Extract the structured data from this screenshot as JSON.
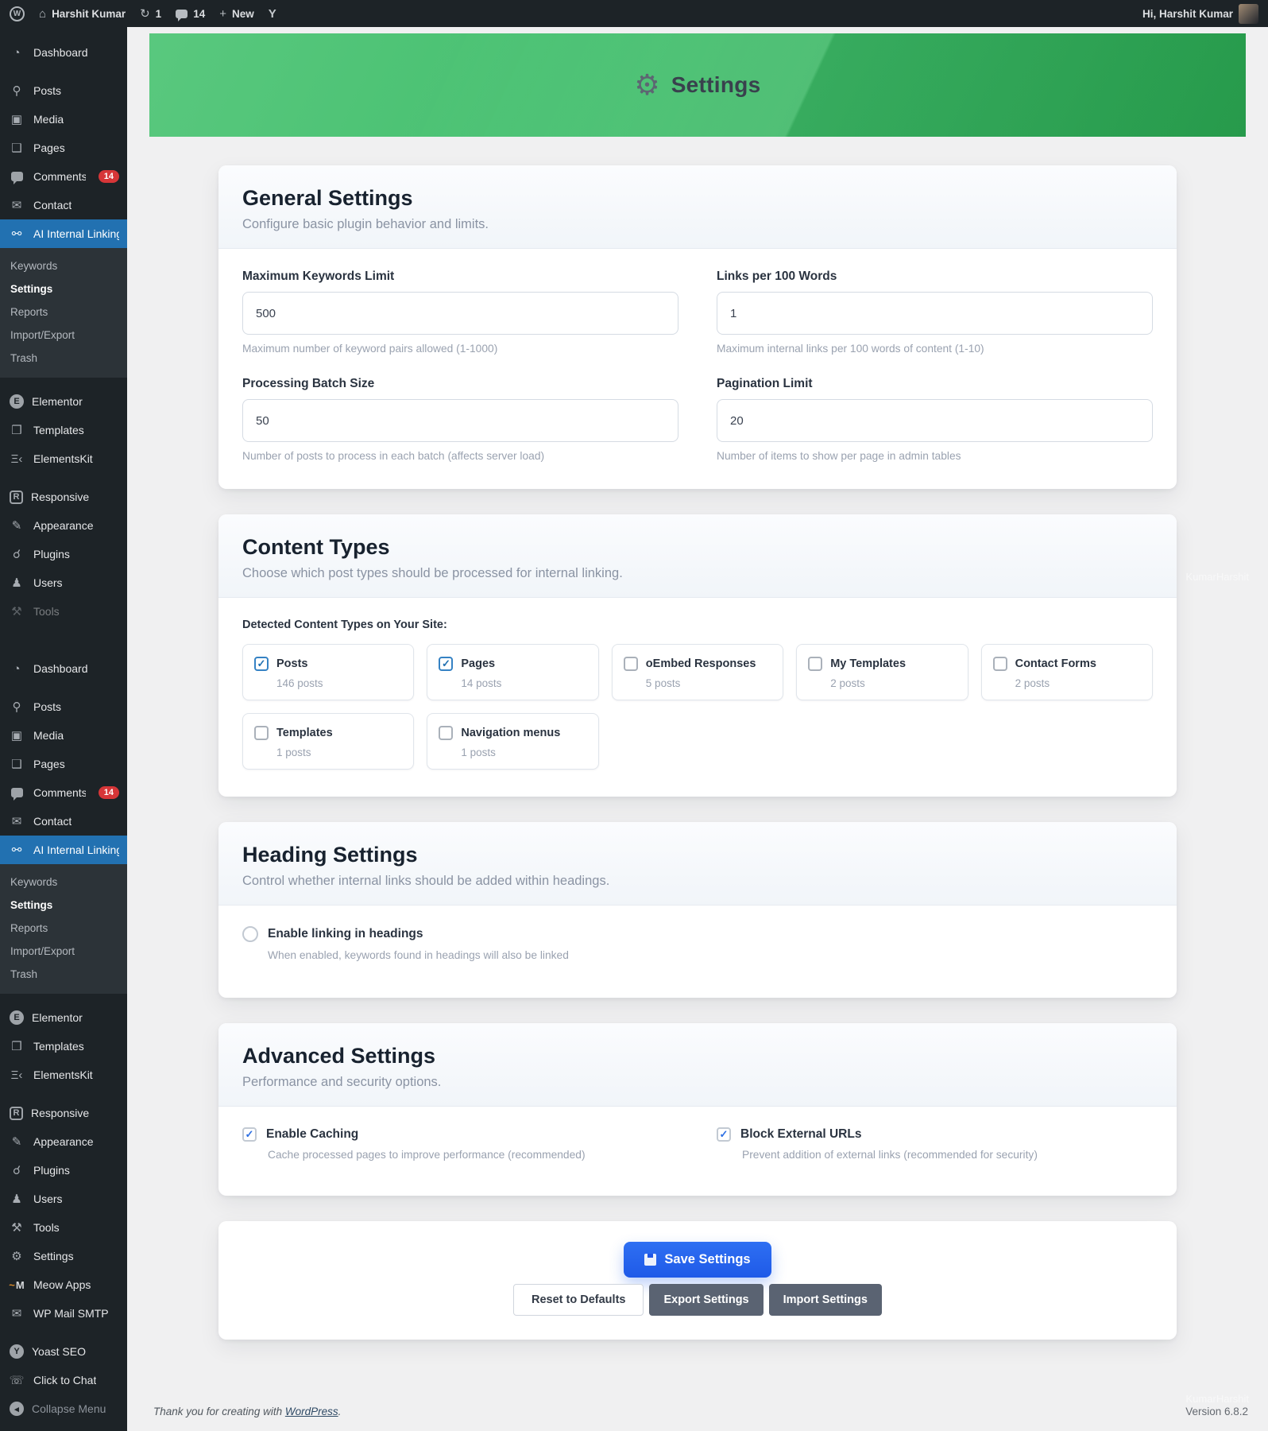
{
  "admin_bar": {
    "icons": {
      "wordpress": "W",
      "home": "⌂",
      "updates": "↻",
      "new_plus": "+",
      "yoast": "Y"
    },
    "site_name": "Harshit Kumar",
    "updates_count": "1",
    "comments_count": "14",
    "new_label": "New",
    "greeting": "Hi, Harshit Kumar"
  },
  "sidebar": {
    "primary": [
      {
        "label": "Dashboard",
        "icon": "dashboard-icon",
        "glyph": "◔"
      },
      {
        "sep": true
      },
      {
        "label": "Posts",
        "icon": "pushpin-icon",
        "glyph": "⚲"
      },
      {
        "label": "Media",
        "icon": "media-icon",
        "glyph": "▣"
      },
      {
        "label": "Pages",
        "icon": "pages-icon",
        "glyph": "❑"
      },
      {
        "label": "Comments",
        "icon": "comment-bubble-icon",
        "glyph": "bubble",
        "badge": "14"
      },
      {
        "label": "Contact",
        "icon": "envelope-icon",
        "glyph": "✉"
      },
      {
        "label": "AI Internal Linking",
        "icon": "link-icon",
        "glyph": "⚯",
        "active": true,
        "submenu": [
          {
            "label": "Keywords"
          },
          {
            "label": "Settings",
            "current": true
          },
          {
            "label": "Reports"
          },
          {
            "label": "Import/Export"
          },
          {
            "label": "Trash"
          }
        ]
      },
      {
        "sep": true
      },
      {
        "label": "Elementor",
        "icon": "elementor-icon",
        "glyph": "E",
        "style": "circle"
      },
      {
        "label": "Templates",
        "icon": "folder-icon",
        "glyph": "❒"
      },
      {
        "label": "ElementsKit",
        "icon": "elementskit-icon",
        "glyph": "Ξ‹"
      },
      {
        "sep": true
      },
      {
        "label": "Responsive",
        "icon": "responsive-icon",
        "glyph": "R",
        "style": "boxed"
      },
      {
        "label": "Appearance",
        "icon": "brush-icon",
        "glyph": "✎"
      },
      {
        "label": "Plugins",
        "icon": "plugin-icon",
        "glyph": "☌"
      },
      {
        "label": "Users",
        "icon": "user-icon",
        "glyph": "♟"
      },
      {
        "label": "Tools",
        "icon": "wrench-icon",
        "glyph": "⚒",
        "faded": true
      }
    ],
    "secondary": [
      {
        "label": "Dashboard",
        "icon": "dashboard-icon",
        "glyph": "◔"
      },
      {
        "sep": true
      },
      {
        "label": "Posts",
        "icon": "pushpin-icon",
        "glyph": "⚲"
      },
      {
        "label": "Media",
        "icon": "media-icon",
        "glyph": "▣"
      },
      {
        "label": "Pages",
        "icon": "pages-icon",
        "glyph": "❑"
      },
      {
        "label": "Comments",
        "icon": "comment-bubble-icon",
        "glyph": "bubble",
        "badge": "14"
      },
      {
        "label": "Contact",
        "icon": "envelope-icon",
        "glyph": "✉"
      },
      {
        "label": "AI Internal Linking",
        "icon": "link-icon",
        "glyph": "⚯",
        "active": true,
        "submenu": [
          {
            "label": "Keywords"
          },
          {
            "label": "Settings",
            "current": true
          },
          {
            "label": "Reports"
          },
          {
            "label": "Import/Export"
          },
          {
            "label": "Trash"
          }
        ]
      },
      {
        "sep": true
      },
      {
        "label": "Elementor",
        "icon": "elementor-icon",
        "glyph": "E",
        "style": "circle"
      },
      {
        "label": "Templates",
        "icon": "folder-icon",
        "glyph": "❒"
      },
      {
        "label": "ElementsKit",
        "icon": "elementskit-icon",
        "glyph": "Ξ‹"
      },
      {
        "sep": true
      },
      {
        "label": "Responsive",
        "icon": "responsive-icon",
        "glyph": "R",
        "style": "boxed"
      },
      {
        "label": "Appearance",
        "icon": "brush-icon",
        "glyph": "✎"
      },
      {
        "label": "Plugins",
        "icon": "plugin-icon",
        "glyph": "☌"
      },
      {
        "label": "Users",
        "icon": "user-icon",
        "glyph": "♟"
      },
      {
        "label": "Tools",
        "icon": "wrench-icon",
        "glyph": "⚒"
      },
      {
        "label": "Settings",
        "icon": "settings-sliders-icon",
        "glyph": "⚙"
      },
      {
        "label": "Meow Apps",
        "icon": "meow-apps-icon",
        "glyph": "M",
        "style": "meow"
      },
      {
        "label": "WP Mail SMTP",
        "icon": "mail-smtp-icon",
        "glyph": "✉"
      },
      {
        "sep": true
      },
      {
        "label": "Yoast SEO",
        "icon": "yoast-icon",
        "glyph": "Y",
        "style": "circle"
      },
      {
        "label": "Click to Chat",
        "icon": "whatsapp-icon",
        "glyph": "☏"
      },
      {
        "label": "Collapse Menu",
        "icon": "collapse-icon",
        "glyph": "◂",
        "style": "circle",
        "dim": true
      }
    ]
  },
  "banner": {
    "gear": "⚙",
    "title": "Settings"
  },
  "general_settings": {
    "title": "General Settings",
    "subtitle": "Configure basic plugin behavior and limits.",
    "fields": [
      {
        "label": "Maximum Keywords Limit",
        "value": "500",
        "help": "Maximum number of keyword pairs allowed (1-1000)"
      },
      {
        "label": "Links per 100 Words",
        "value": "1",
        "help": "Maximum internal links per 100 words of content (1-10)"
      },
      {
        "label": "Processing Batch Size",
        "value": "50",
        "help": "Number of posts to process in each batch (affects server load)"
      },
      {
        "label": "Pagination Limit",
        "value": "20",
        "help": "Number of items to show per page in admin tables"
      }
    ]
  },
  "content_types": {
    "title": "Content Types",
    "subtitle": "Choose which post types should be processed for internal linking.",
    "detected_label": "Detected Content Types on Your Site:",
    "items": [
      {
        "label": "Posts",
        "count": "146 posts",
        "checked": true
      },
      {
        "label": "Pages",
        "count": "14 posts",
        "checked": true
      },
      {
        "label": "oEmbed Responses",
        "count": "5 posts",
        "checked": false
      },
      {
        "label": "My Templates",
        "count": "2 posts",
        "checked": false
      },
      {
        "label": "Contact Forms",
        "count": "2 posts",
        "checked": false
      },
      {
        "label": "Templates",
        "count": "1 posts",
        "checked": false
      },
      {
        "label": "Navigation menus",
        "count": "1 posts",
        "checked": false
      }
    ]
  },
  "heading_settings": {
    "title": "Heading Settings",
    "subtitle": "Control whether internal links should be added within headings.",
    "option_label": "Enable linking in headings",
    "option_help": "When enabled, keywords found in headings will also be linked",
    "enabled": false
  },
  "advanced_settings": {
    "title": "Advanced Settings",
    "subtitle": "Performance and security options.",
    "options": [
      {
        "label": "Enable Caching",
        "help": "Cache processed pages to improve performance (recommended)",
        "checked": true
      },
      {
        "label": "Block External URLs",
        "help": "Prevent addition of external links (recommended for security)",
        "checked": true
      }
    ]
  },
  "actions": {
    "save_label": "Save Settings",
    "reset_label": "Reset to Defaults",
    "export_label": "Export Settings",
    "import_label": "Import Settings"
  },
  "footer": {
    "thanks_prefix": "Thank you for creating with ",
    "link": "WordPress",
    "thanks_suffix": ".",
    "version": "Version 6.8.2"
  },
  "watermark": {
    "text": "KumarHarshit"
  },
  "colors": {
    "sidebar_bg": "#1d2327",
    "submenu_bg": "#2c3338",
    "active_blue": "#2271b1",
    "badge_red": "#d63638",
    "banner_green_light": "#59c87e",
    "banner_green_dark": "#2ba551",
    "save_blue": "#2563eb",
    "dark_button_gray": "#5a6372"
  }
}
